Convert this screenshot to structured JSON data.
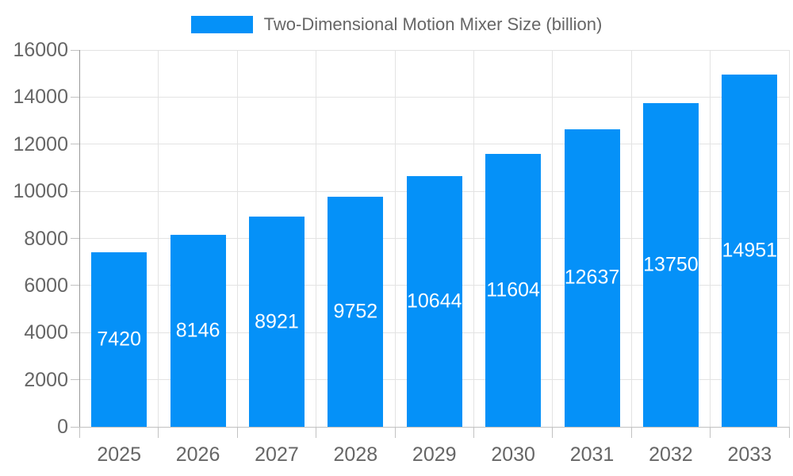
{
  "chart_data": {
    "type": "bar",
    "title": "Two-Dimensional Motion Mixer Size (billion)",
    "legend": {
      "label": "Two-Dimensional Motion Mixer Size (billion)",
      "position": "top-center"
    },
    "categories": [
      "2025",
      "2026",
      "2027",
      "2028",
      "2029",
      "2030",
      "2031",
      "2032",
      "2033"
    ],
    "series": [
      {
        "name": "Two-Dimensional Motion Mixer Size (billion)",
        "values": [
          7420,
          8146,
          8921,
          9752,
          10644,
          11604,
          12637,
          13750,
          14951
        ]
      }
    ],
    "bar_value_labels": "inside-center",
    "xlabel": "",
    "ylabel": "",
    "ylim": [
      0,
      16000
    ],
    "ytick_interval": 2000,
    "ytick_labels": [
      "0",
      "2000",
      "4000",
      "6000",
      "8000",
      "10000",
      "12000",
      "14000",
      "16000"
    ],
    "grid": {
      "horizontal": true,
      "vertical": true
    },
    "colors": {
      "bar": "#0591f8",
      "bar_label_text": "#ffffff",
      "axis_text": "#666666",
      "legend_text": "#666666",
      "grid_line": "#e3e3e3",
      "y_axis_line": "#9a9a9a",
      "x_axis_line": "#c2c2c2",
      "tick_line": "#c2c2c2",
      "background": "#ffffff"
    }
  }
}
